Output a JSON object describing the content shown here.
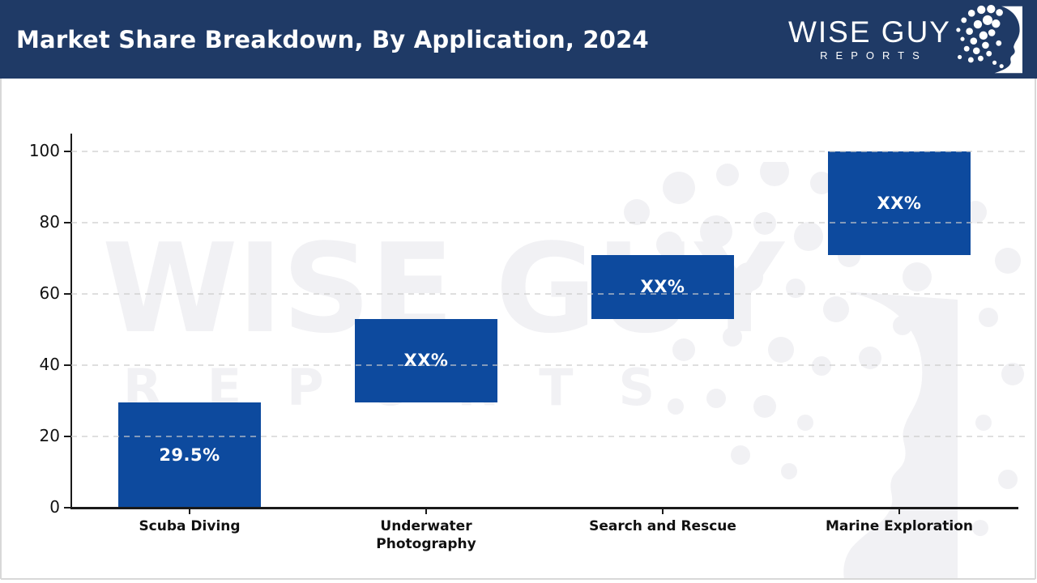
{
  "header": {
    "title": "Market Share Breakdown, By Application, 2024"
  },
  "logo": {
    "line1": "WISE GUY",
    "line2": "REPORTS"
  },
  "watermark": {
    "line1": "WISE GUY",
    "line2": "REPORTS"
  },
  "colors": {
    "header_bg": "#1f3a66",
    "bar": "#0d4a9e",
    "grid": "#cbcbcb",
    "watermark": "#f1f1f4",
    "axis": "#1a1a1a"
  },
  "chart_data": {
    "type": "bar",
    "subtype": "floating-waterfall",
    "title": "Market Share Breakdown, By Application, 2024",
    "categories": [
      "Scuba Diving",
      "Underwater\nPhotography",
      "Search and Rescue",
      "Marine Exploration"
    ],
    "segments": [
      {
        "category": "Scuba Diving",
        "label": "29.5%",
        "start": 0,
        "end": 29.5
      },
      {
        "category": "Underwater Photography",
        "label": "XX%",
        "start": 29.5,
        "end": 53
      },
      {
        "category": "Search and Rescue",
        "label": "XX%",
        "start": 53,
        "end": 71
      },
      {
        "category": "Marine Exploration",
        "label": "XX%",
        "start": 71,
        "end": 100
      }
    ],
    "yticks": [
      0,
      20,
      40,
      60,
      80,
      100
    ],
    "ylim": [
      0,
      104
    ],
    "xlabel": "",
    "ylabel": "",
    "grid": "horizontal-dashed",
    "legend": "none",
    "bar_color": "#0d4a9e",
    "value_label_color": "#ffffff"
  }
}
